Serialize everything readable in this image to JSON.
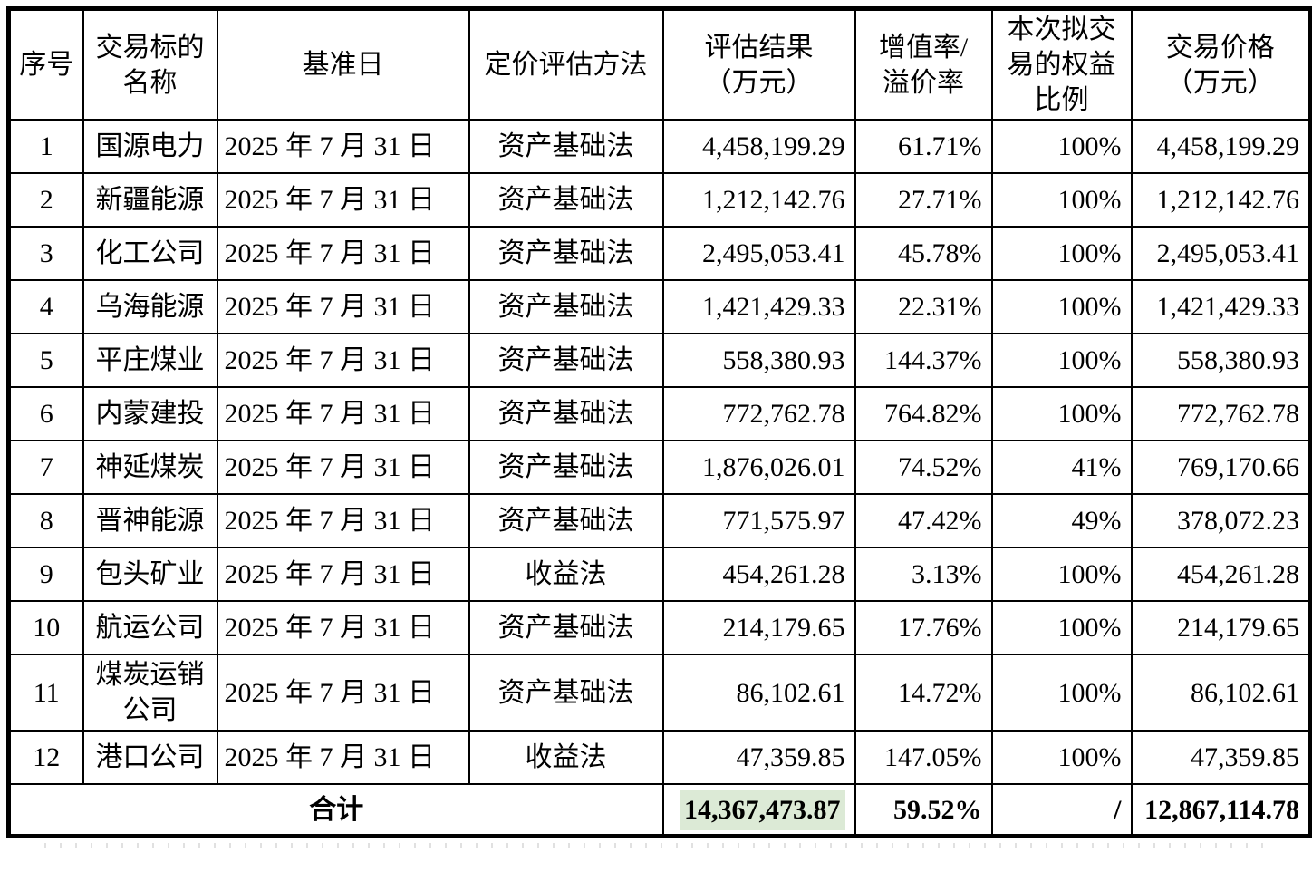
{
  "page": {
    "background": "#ffffff",
    "text_color": "#000000",
    "border_color": "#000000"
  },
  "table": {
    "highlight_color": "#dcead6",
    "columns": [
      {
        "id": "no",
        "label": "序号"
      },
      {
        "id": "name",
        "label": "交易标的\n名称"
      },
      {
        "id": "date",
        "label": "基准日"
      },
      {
        "id": "method",
        "label": "定价评估方法"
      },
      {
        "id": "result",
        "label": "评估结果\n（万元）"
      },
      {
        "id": "premium",
        "label": "增值率/\n溢价率"
      },
      {
        "id": "equity",
        "label": "本次拟交\n易的权益\n比例"
      },
      {
        "id": "price",
        "label": "交易价格\n（万元）"
      }
    ],
    "rows": [
      {
        "no": "1",
        "name": "国源电力",
        "date": "2025 年 7 月 31 日",
        "method": "资产基础法",
        "result": "4,458,199.29",
        "premium": "61.71%",
        "equity": "100%",
        "price": "4,458,199.29"
      },
      {
        "no": "2",
        "name": "新疆能源",
        "date": "2025 年 7 月 31 日",
        "method": "资产基础法",
        "result": "1,212,142.76",
        "premium": "27.71%",
        "equity": "100%",
        "price": "1,212,142.76"
      },
      {
        "no": "3",
        "name": "化工公司",
        "date": "2025 年 7 月 31 日",
        "method": "资产基础法",
        "result": "2,495,053.41",
        "premium": "45.78%",
        "equity": "100%",
        "price": "2,495,053.41"
      },
      {
        "no": "4",
        "name": "乌海能源",
        "date": "2025 年 7 月 31 日",
        "method": "资产基础法",
        "result": "1,421,429.33",
        "premium": "22.31%",
        "equity": "100%",
        "price": "1,421,429.33"
      },
      {
        "no": "5",
        "name": "平庄煤业",
        "date": "2025 年 7 月 31 日",
        "method": "资产基础法",
        "result": "558,380.93",
        "premium": "144.37%",
        "equity": "100%",
        "price": "558,380.93"
      },
      {
        "no": "6",
        "name": "内蒙建投",
        "date": "2025 年 7 月 31 日",
        "method": "资产基础法",
        "result": "772,762.78",
        "premium": "764.82%",
        "equity": "100%",
        "price": "772,762.78"
      },
      {
        "no": "7",
        "name": "神延煤炭",
        "date": "2025 年 7 月 31 日",
        "method": "资产基础法",
        "result": "1,876,026.01",
        "premium": "74.52%",
        "equity": "41%",
        "price": "769,170.66"
      },
      {
        "no": "8",
        "name": "晋神能源",
        "date": "2025 年 7 月 31 日",
        "method": "资产基础法",
        "result": "771,575.97",
        "premium": "47.42%",
        "equity": "49%",
        "price": "378,072.23"
      },
      {
        "no": "9",
        "name": "包头矿业",
        "date": "2025 年 7 月 31 日",
        "method": "收益法",
        "result": "454,261.28",
        "premium": "3.13%",
        "equity": "100%",
        "price": "454,261.28"
      },
      {
        "no": "10",
        "name": "航运公司",
        "date": "2025 年 7 月 31 日",
        "method": "资产基础法",
        "result": "214,179.65",
        "premium": "17.76%",
        "equity": "100%",
        "price": "214,179.65"
      },
      {
        "no": "11",
        "name": "煤炭运销公司",
        "date": "2025 年 7 月 31 日",
        "method": "资产基础法",
        "result": "86,102.61",
        "premium": "14.72%",
        "equity": "100%",
        "price": "86,102.61"
      },
      {
        "no": "12",
        "name": "港口公司",
        "date": "2025 年 7 月 31 日",
        "method": "收益法",
        "result": "47,359.85",
        "premium": "147.05%",
        "equity": "100%",
        "price": "47,359.85"
      }
    ],
    "total": {
      "label": "合计",
      "result": "14,367,473.87",
      "premium": "59.52%",
      "equity": "/",
      "price": "12,867,114.78"
    }
  }
}
